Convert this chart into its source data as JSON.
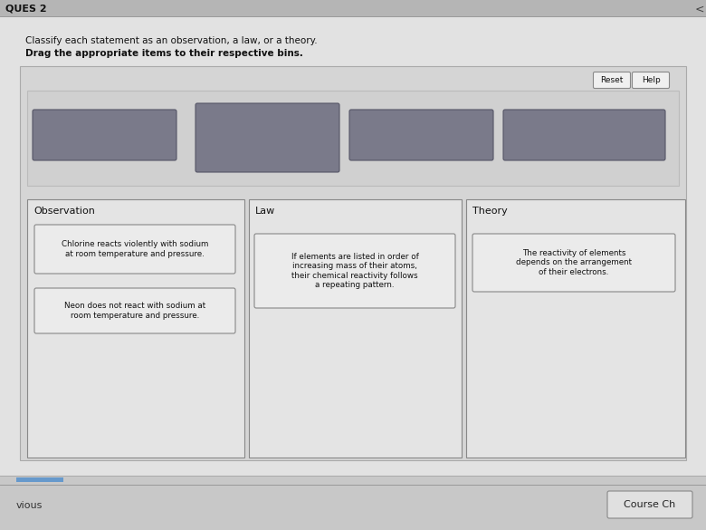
{
  "title": "QUES 2",
  "instruction1": "Classify each statement as an observation, a law, or a theory.",
  "instruction2": "Drag the appropriate items to their respective bins.",
  "reset_label": "Reset",
  "help_label": "Help",
  "bin_labels": [
    "Observation",
    "Law",
    "Theory"
  ],
  "obs_card1": "Chlorine reacts violently with sodium\nat room temperature and pressure.",
  "obs_card2": "Neon does not react with sodium at\nroom temperature and pressure.",
  "law_card": "If elements are listed in order of\nincreasing mass of their atoms,\ntheir chemical reactivity follows\na repeating pattern.",
  "theory_card": "The reactivity of elements\ndepends on the arrangement\nof their electrons.",
  "footer_left": "vious",
  "footer_right": "Course Ch",
  "header_bg": "#b5b5b5",
  "page_bg": "#c8c8c8",
  "content_bg": "#e0e0e0",
  "white_area_bg": "#dcdcdc",
  "card_area_bg": "#d8d8d8",
  "drag_card_color": "#7a7a8a",
  "bin_bg": "#e8e8e8",
  "item_card_bg": "#ebebeb",
  "item_card_edge": "#888888",
  "bin_edge": "#888888",
  "progress_color": "#6699cc",
  "footer_bg": "#c8c8c8",
  "footer_btn_bg": "#e0e0e0"
}
